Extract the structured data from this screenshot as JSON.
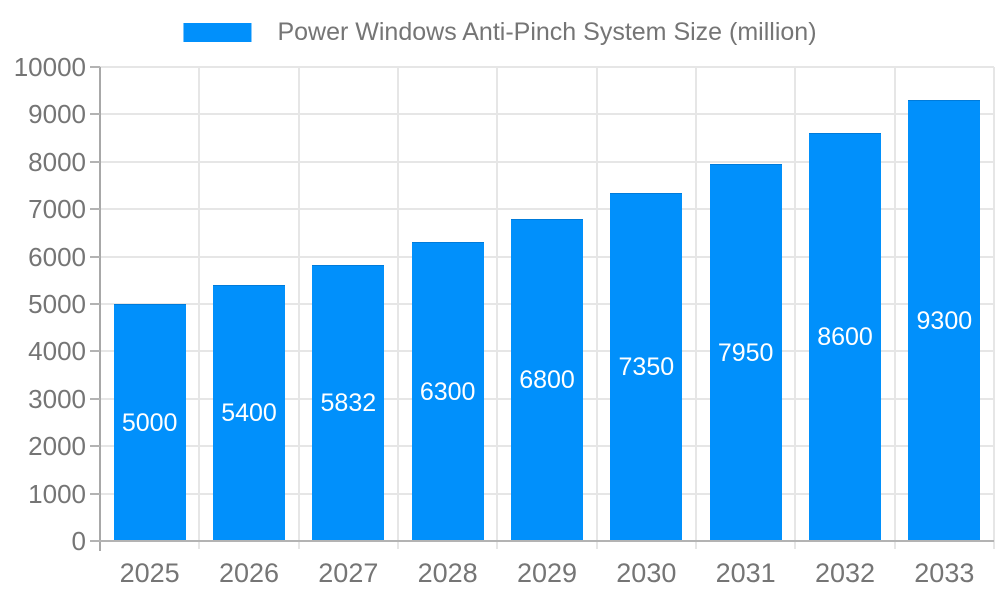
{
  "chart_data": {
    "type": "bar",
    "title": "Power Windows Anti-Pinch System Size (million)",
    "categories": [
      "2025",
      "2026",
      "2027",
      "2028",
      "2029",
      "2030",
      "2031",
      "2032",
      "2033"
    ],
    "values": [
      5000,
      5400,
      5832,
      6300,
      6800,
      7350,
      7950,
      8600,
      9300
    ],
    "series_name": "Power Windows Anti-Pinch System Size (million)",
    "xlabel": "",
    "ylabel": "",
    "ylim": [
      0,
      10000
    ],
    "yticks": [
      0,
      1000,
      2000,
      3000,
      4000,
      5000,
      6000,
      7000,
      8000,
      9000,
      10000
    ],
    "grid": true,
    "legend_position": "top-center",
    "bar_labels_shown": true,
    "colors": {
      "bar": "#0190fb",
      "grid": "#e6e6e6",
      "axis_line": "#a8a8a8",
      "baseline": "#b3b3b3",
      "text": "#757575",
      "bar_label": "#ffffff",
      "background": "#ffffff"
    }
  }
}
